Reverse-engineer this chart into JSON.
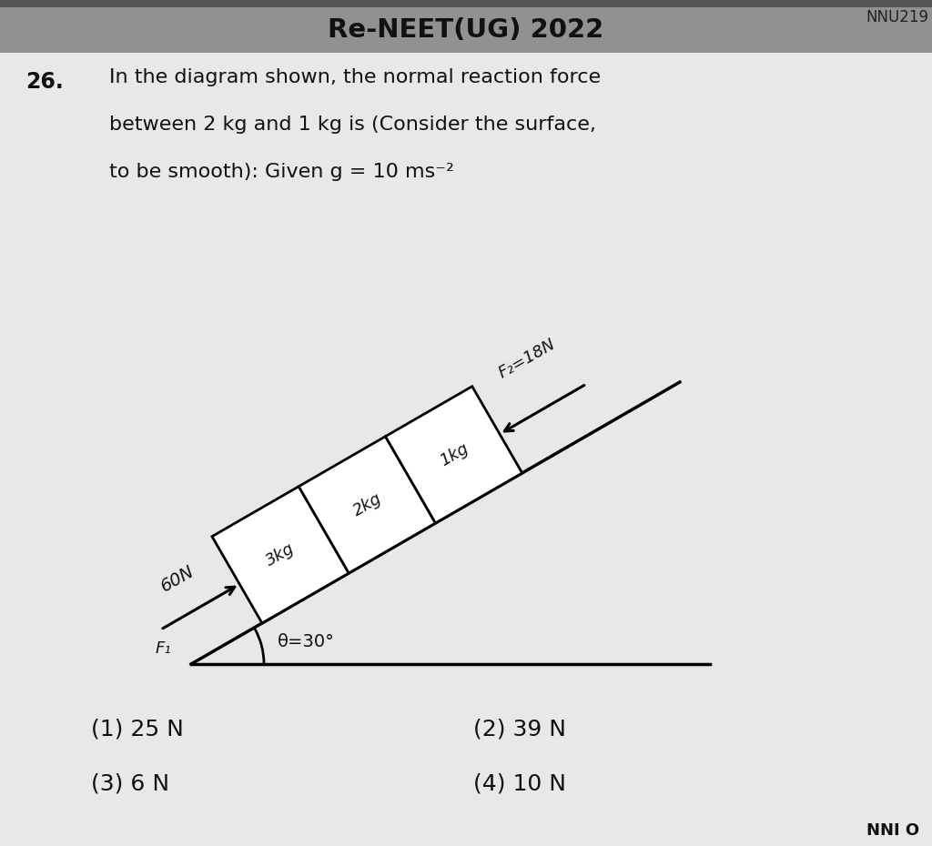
{
  "title": "Re-NEET(UG) 2022",
  "bg_color": "#e8e8e8",
  "content_bg": "#f0f0f0",
  "header_bg": "#999999",
  "question_number": "26.",
  "lines": [
    "In the diagram shown, the normal reaction force",
    "between 2 kg and 1 kg is (Consider the surface,",
    "to be smooth): Given g = 10 ms⁻²"
  ],
  "options": [
    "(1) 25 N",
    "(2) 39 N",
    "(3) 6 N",
    "(4) 10 N"
  ],
  "theta_deg": 30,
  "F1_label": "60N",
  "F1_sublabel": "F₁",
  "F2_label": "F₂=18N",
  "mass_labels": [
    "3kg",
    "2kg",
    "1kg"
  ],
  "theta_label": "θ=30°",
  "top_right_text": "NNU219",
  "bottom_right_text": "NNI O"
}
